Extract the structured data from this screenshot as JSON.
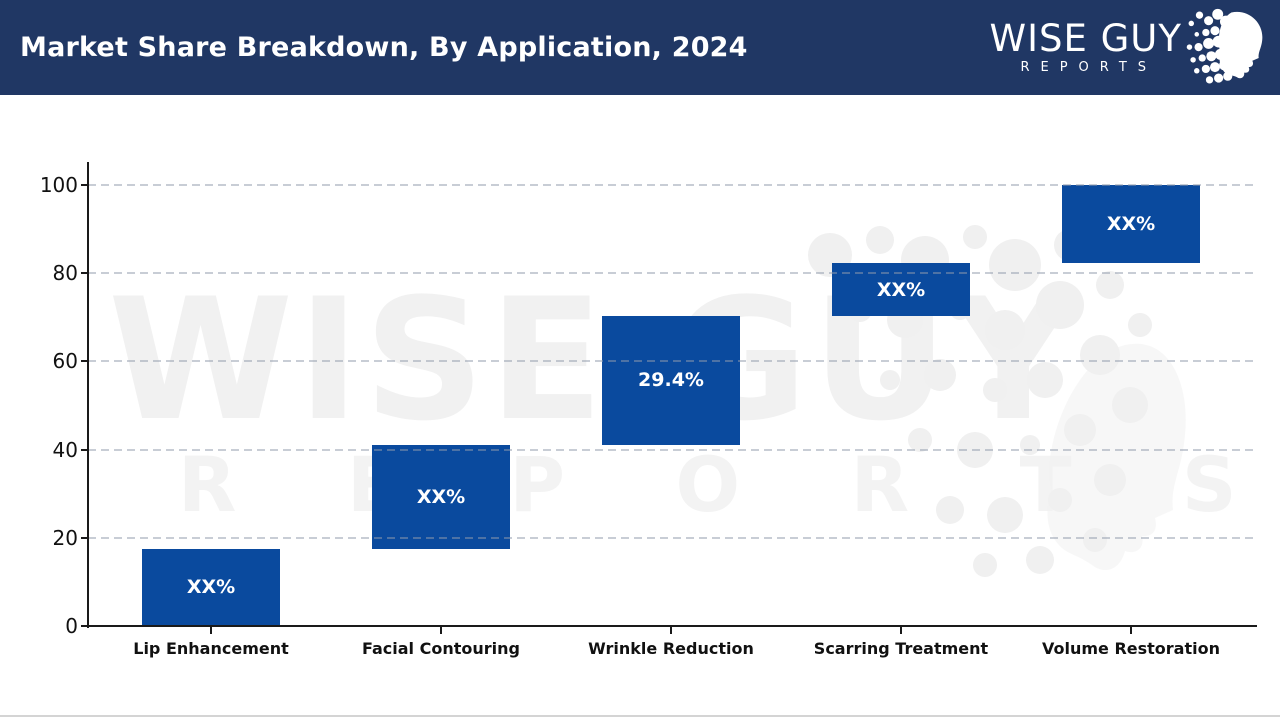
{
  "header": {
    "title": "Market Share Breakdown, By Application, 2024",
    "logo": {
      "line1": "WISE GUY",
      "line2": "REPORTS"
    }
  },
  "watermark": {
    "line1": "WISE GUY",
    "line2": "R E P O R T S"
  },
  "colors": {
    "header_bg": "#203764",
    "bar": "#0a4a9e",
    "axis": "#1a1a1a",
    "grid": "#d8d8d8",
    "watermark": "#f1f1f1",
    "footer_line": "#d4d4d4"
  },
  "chart_data": {
    "type": "bar",
    "subtype": "floating-waterfall",
    "title": "Market Share Breakdown, By Application, 2024",
    "xlabel": "",
    "ylabel": "",
    "ylim": [
      0,
      100
    ],
    "yticks": [
      0,
      20,
      40,
      60,
      80,
      100
    ],
    "grid": "horizontal-dashed",
    "legend": "none",
    "categories": [
      "Lip Enhancement",
      "Facial Contouring",
      "Wrinkle Reduction",
      "Scarring Treatment",
      "Volume Restoration"
    ],
    "bars": [
      {
        "category": "Lip Enhancement",
        "start": 0,
        "end": 17.5,
        "label": "XX%"
      },
      {
        "category": "Facial Contouring",
        "start": 17.5,
        "end": 41.0,
        "label": "XX%"
      },
      {
        "category": "Wrinkle Reduction",
        "start": 41.0,
        "end": 70.4,
        "label": "29.4%"
      },
      {
        "category": "Scarring Treatment",
        "start": 70.4,
        "end": 82.2,
        "label": "XX%"
      },
      {
        "category": "Volume Restoration",
        "start": 82.2,
        "end": 100,
        "label": "XX%"
      }
    ]
  }
}
